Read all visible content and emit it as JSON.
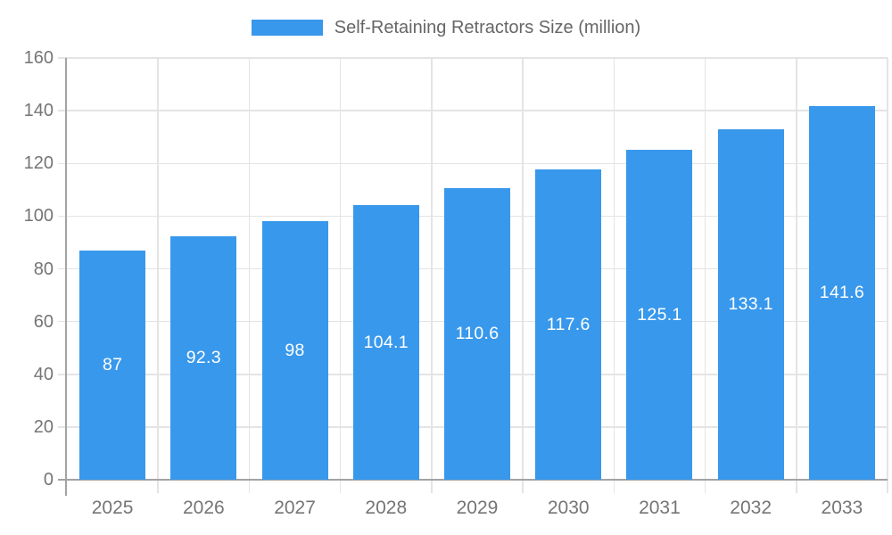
{
  "chart_data": {
    "type": "bar",
    "title": "Self-Retaining Retractors Size (million)",
    "series_name": "Self-Retaining Retractors Size (million)",
    "categories": [
      "2025",
      "2026",
      "2027",
      "2028",
      "2029",
      "2030",
      "2031",
      "2032",
      "2033"
    ],
    "values": [
      87,
      92.3,
      98,
      104.1,
      110.6,
      117.6,
      125.1,
      133.1,
      141.6
    ],
    "value_labels": [
      "87",
      "92.3",
      "98",
      "104.1",
      "110.6",
      "117.6",
      "125.1",
      "133.1",
      "141.6"
    ],
    "xlabel": "",
    "ylabel": "",
    "ylim": [
      0,
      160
    ],
    "yticks": [
      0,
      20,
      40,
      60,
      80,
      100,
      120,
      140,
      160
    ],
    "grid": true,
    "legend_position": "top-center",
    "value_label_position": "inside-center",
    "colors": {
      "bar": "#3898EC",
      "grid": "#E4E4E4",
      "axis": "#A3A3A3",
      "tick_text": "#757575",
      "legend_text": "#666666",
      "value_label": "#FFFFFF",
      "background": "#FFFFFF"
    }
  }
}
